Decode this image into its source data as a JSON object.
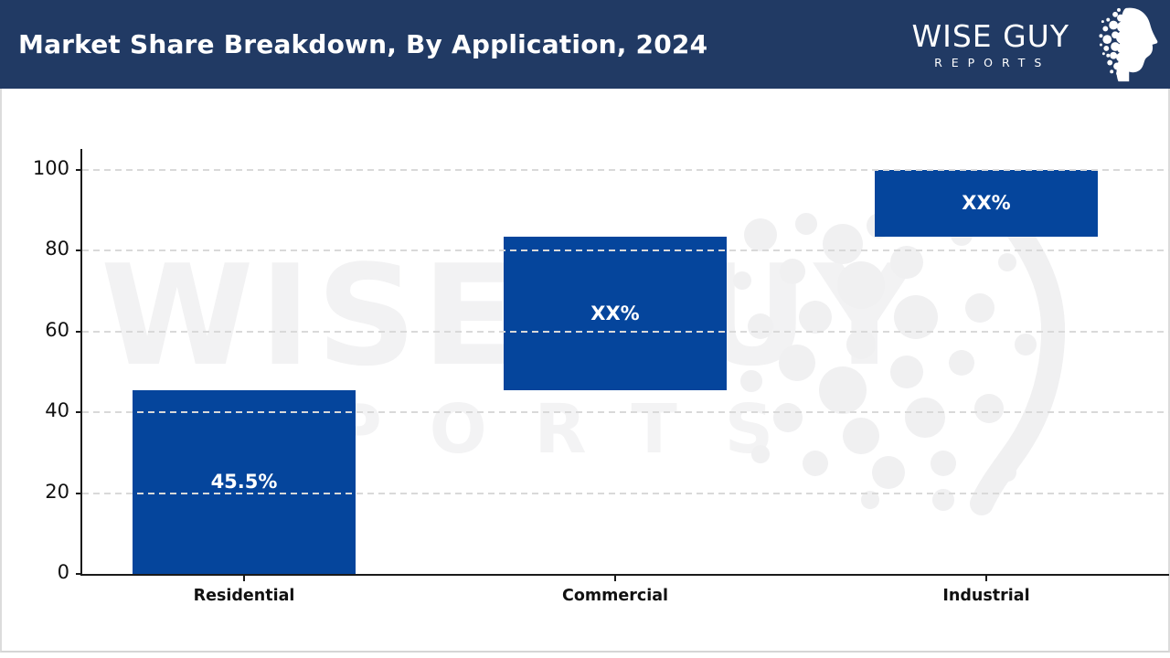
{
  "header": {
    "title": "Market Share Breakdown, By Application, 2024",
    "bg_color": "#213a64",
    "logo": {
      "line1": "WISE GUY",
      "line2": "REPORTS"
    }
  },
  "watermark": {
    "line1": "WISE GUY",
    "line2": "REPORTS"
  },
  "chart_data": {
    "type": "bar",
    "subtype": "stacked-waterfall-segments",
    "title": "Market Share Breakdown, By Application, 2024",
    "categories": [
      "Residential",
      "Commercial",
      "Industrial"
    ],
    "bars": [
      {
        "category": "Residential",
        "start": 0,
        "end": 45.5,
        "label": "45.5%"
      },
      {
        "category": "Commercial",
        "start": 45.5,
        "end": 83.5,
        "label": "XX%"
      },
      {
        "category": "Industrial",
        "start": 83.5,
        "end": 100,
        "label": "XX%"
      }
    ],
    "ylim": [
      0,
      100
    ],
    "yticks": [
      0,
      20,
      40,
      60,
      80,
      100
    ],
    "xlabel": "",
    "ylabel": "",
    "grid": "horizontal-dashed",
    "legend": "none",
    "bar_color": "#05459c",
    "bar_label_color": "#ffffff",
    "axis_color": "#1a1a1a",
    "gridline_color": "#d9d9d9"
  }
}
